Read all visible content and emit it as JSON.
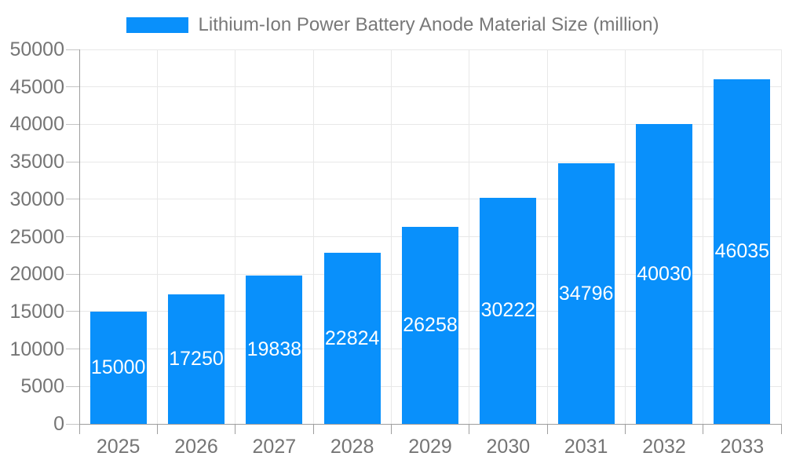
{
  "chart_data": {
    "type": "bar",
    "title": "",
    "xlabel": "",
    "ylabel": "",
    "legend_entries": [
      "Lithium-Ion Power Battery Anode Material Size (million)"
    ],
    "legend_position": "top-center",
    "categories": [
      "2025",
      "2026",
      "2027",
      "2028",
      "2029",
      "2030",
      "2031",
      "2032",
      "2033"
    ],
    "series": [
      {
        "name": "Lithium-Ion Power Battery Anode Material Size (million)",
        "values": [
          15000,
          17250,
          19838,
          22824,
          26258,
          30222,
          34796,
          40030,
          46035
        ]
      }
    ],
    "value_labels_shown": true,
    "value_label_position": "inside-center",
    "ylim": [
      0,
      50000
    ],
    "y_ticks": [
      0,
      5000,
      10000,
      15000,
      20000,
      25000,
      30000,
      35000,
      40000,
      45000,
      50000
    ],
    "grid": true,
    "colors": {
      "bar": "#0990fb",
      "value_label": "#ffffff",
      "axis_text": "#757575",
      "legend_text": "#787878",
      "grid_line": "#e8e8e8",
      "tick": "#c4c4c4",
      "axis_line": "#9e9e9e",
      "background": "#ffffff"
    }
  }
}
